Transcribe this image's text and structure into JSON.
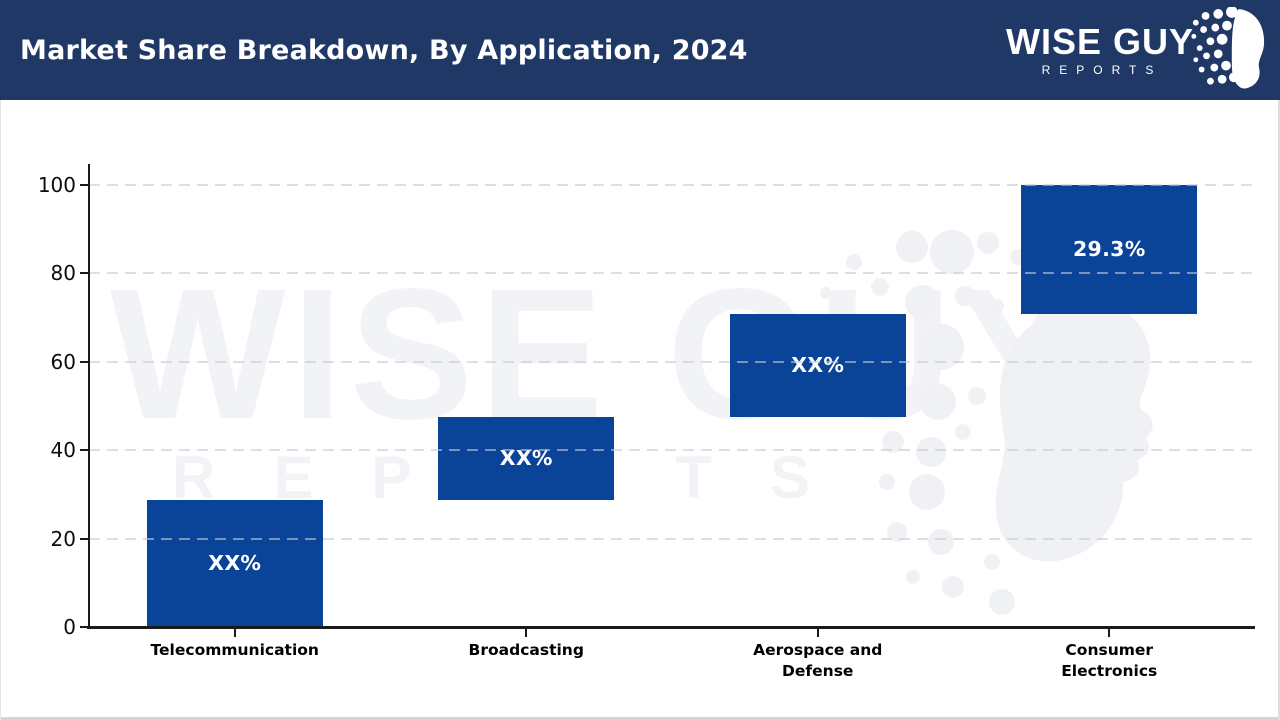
{
  "header": {
    "title": "Market Share Breakdown, By Application, 2024",
    "logo": {
      "brand": "WISE GUY",
      "sub": "REPORTS"
    }
  },
  "watermark": {
    "brand": "WISE GUY",
    "sub": "REPORTS"
  },
  "chart_data": {
    "type": "bar",
    "subtype": "waterfall",
    "title": "Market Share Breakdown, By Application, 2024",
    "categories": [
      "Telecommunication",
      "Broadcasting",
      "Aerospace and Defense",
      "Consumer Electronics"
    ],
    "category_label_lines": [
      [
        "Telecommunication"
      ],
      [
        "Broadcasting"
      ],
      [
        "Aerospace and",
        "Defense"
      ],
      [
        "Consumer",
        "Electronics"
      ]
    ],
    "segments": [
      {
        "category": "Telecommunication",
        "start": 0,
        "end": 28.8,
        "label": "XX%"
      },
      {
        "category": "Broadcasting",
        "start": 28.8,
        "end": 47.5,
        "label": "XX%"
      },
      {
        "category": "Aerospace and Defense",
        "start": 47.5,
        "end": 70.7,
        "label": "XX%"
      },
      {
        "category": "Consumer Electronics",
        "start": 70.7,
        "end": 100,
        "label": "29.3%"
      }
    ],
    "ylim": [
      0,
      100
    ],
    "yticks": [
      0,
      20,
      40,
      60,
      80,
      100
    ],
    "grid": {
      "axis": "y",
      "style": "dashed"
    },
    "legend": "none",
    "xlabel": "",
    "ylabel": "",
    "bar_color": "#0a4499",
    "bar_label_color": "#ffffff"
  },
  "colors": {
    "header_bg": "#1f3866",
    "axis": "#1a1a1a",
    "gridline": "#e0e0e0",
    "watermark": "#f2f3f6"
  }
}
